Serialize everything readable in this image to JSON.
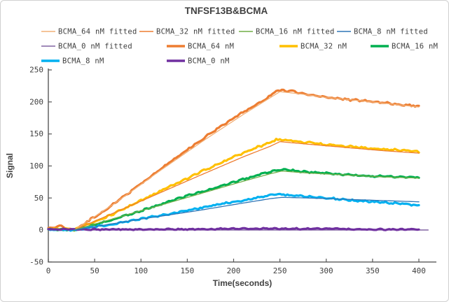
{
  "chart_data": {
    "type": "line",
    "title": "TNFSF13B&BCMA",
    "xlabel": "Time(seconds)",
    "ylabel": "Signal",
    "xlim": [
      0,
      415
    ],
    "ylim": [
      -50,
      250
    ],
    "xticks": [
      0,
      50,
      100,
      150,
      200,
      250,
      300,
      350,
      400
    ],
    "yticks": [
      -50,
      0,
      50,
      100,
      150,
      200,
      250
    ],
    "grid": false,
    "legend_position": "top",
    "axis_color": "#595959",
    "text_color": "#3f3f3f",
    "series": [
      {
        "name": "BCMA_64 nM fitted",
        "color": "#F2B077",
        "role": "fitted",
        "width": 1.3,
        "noise": 0,
        "points": [
          [
            28,
            0
          ],
          [
            70,
            40
          ],
          [
            120,
            92
          ],
          [
            170,
            142
          ],
          [
            210,
            180
          ],
          [
            240,
            207
          ],
          [
            250,
            216
          ],
          [
            270,
            213
          ],
          [
            300,
            207
          ],
          [
            350,
            200
          ],
          [
            400,
            192
          ]
        ]
      },
      {
        "name": "BCMA_32 nM fitted",
        "color": "#ED7D31",
        "role": "fitted",
        "width": 1.3,
        "noise": 0,
        "points": [
          [
            28,
            0
          ],
          [
            100,
            45
          ],
          [
            160,
            83
          ],
          [
            210,
            114
          ],
          [
            240,
            131
          ],
          [
            250,
            138
          ],
          [
            280,
            134
          ],
          [
            320,
            129
          ],
          [
            360,
            124
          ],
          [
            400,
            120
          ]
        ]
      },
      {
        "name": "BCMA_16 nM fitted",
        "color": "#70AD47",
        "role": "fitted",
        "width": 1.3,
        "noise": 0,
        "points": [
          [
            28,
            0
          ],
          [
            100,
            30
          ],
          [
            160,
            55
          ],
          [
            210,
            76
          ],
          [
            240,
            88
          ],
          [
            252,
            92
          ],
          [
            280,
            89
          ],
          [
            320,
            86
          ],
          [
            360,
            83
          ],
          [
            400,
            81
          ]
        ]
      },
      {
        "name": "BCMA_8 nM fitted",
        "color": "#2E75B6",
        "role": "fitted",
        "width": 1.3,
        "noise": 0,
        "points": [
          [
            28,
            0
          ],
          [
            100,
            17
          ],
          [
            160,
            30
          ],
          [
            210,
            42
          ],
          [
            240,
            49
          ],
          [
            252,
            51
          ],
          [
            280,
            50
          ],
          [
            320,
            48
          ],
          [
            360,
            46
          ],
          [
            400,
            44
          ]
        ]
      },
      {
        "name": "BCMA_0 nM fitted",
        "color": "#8064A2",
        "role": "fitted",
        "width": 1.6,
        "noise": 0,
        "points": [
          [
            0,
            0
          ],
          [
            410,
            0
          ]
        ]
      },
      {
        "name": "BCMA_64 nM",
        "color": "#ED7D31",
        "role": "data",
        "width": 3.2,
        "noise": 1.5,
        "points": [
          [
            0,
            2
          ],
          [
            6,
            4
          ],
          [
            11,
            6
          ],
          [
            16,
            5
          ],
          [
            22,
            1
          ],
          [
            28,
            0
          ],
          [
            60,
            30
          ],
          [
            100,
            72
          ],
          [
            140,
            115
          ],
          [
            180,
            156
          ],
          [
            210,
            184
          ],
          [
            232,
            202
          ],
          [
            246,
            217
          ],
          [
            252,
            218
          ],
          [
            265,
            216
          ],
          [
            280,
            212
          ],
          [
            300,
            207
          ],
          [
            320,
            204
          ],
          [
            340,
            202
          ],
          [
            360,
            199
          ],
          [
            380,
            196
          ],
          [
            400,
            193
          ]
        ]
      },
      {
        "name": "BCMA_32 nM",
        "color": "#FFC000",
        "role": "data",
        "width": 3.2,
        "noise": 1.5,
        "points": [
          [
            0,
            1
          ],
          [
            8,
            2
          ],
          [
            14,
            3
          ],
          [
            20,
            1
          ],
          [
            28,
            0
          ],
          [
            60,
            18
          ],
          [
            100,
            46
          ],
          [
            140,
            74
          ],
          [
            180,
            101
          ],
          [
            210,
            120
          ],
          [
            232,
            133
          ],
          [
            246,
            141
          ],
          [
            255,
            141
          ],
          [
            270,
            138
          ],
          [
            290,
            135
          ],
          [
            310,
            132
          ],
          [
            330,
            130
          ],
          [
            350,
            127
          ],
          [
            375,
            125
          ],
          [
            400,
            122
          ]
        ]
      },
      {
        "name": "BCMA_16 nM",
        "color": "#00B050",
        "role": "data",
        "width": 3.2,
        "noise": 1.4,
        "points": [
          [
            0,
            1
          ],
          [
            10,
            1
          ],
          [
            20,
            0
          ],
          [
            28,
            0
          ],
          [
            60,
            12
          ],
          [
            100,
            30
          ],
          [
            140,
            49
          ],
          [
            180,
            66
          ],
          [
            210,
            79
          ],
          [
            232,
            88
          ],
          [
            248,
            94
          ],
          [
            258,
            94
          ],
          [
            275,
            91
          ],
          [
            295,
            89
          ],
          [
            315,
            87
          ],
          [
            335,
            85
          ],
          [
            355,
            84
          ],
          [
            375,
            83
          ],
          [
            400,
            82
          ]
        ]
      },
      {
        "name": "BCMA_8 nM",
        "color": "#00B0F0",
        "role": "data",
        "width": 3.2,
        "noise": 1.4,
        "points": [
          [
            0,
            1
          ],
          [
            10,
            0
          ],
          [
            20,
            0
          ],
          [
            28,
            0
          ],
          [
            60,
            7
          ],
          [
            100,
            17
          ],
          [
            140,
            28
          ],
          [
            180,
            39
          ],
          [
            210,
            46
          ],
          [
            232,
            52
          ],
          [
            246,
            56
          ],
          [
            256,
            55
          ],
          [
            270,
            53
          ],
          [
            290,
            51
          ],
          [
            310,
            49
          ],
          [
            330,
            46
          ],
          [
            350,
            44
          ],
          [
            370,
            42
          ],
          [
            385,
            41
          ],
          [
            400,
            38
          ]
        ]
      },
      {
        "name": "BCMA_0 nM",
        "color": "#7030A0",
        "role": "data",
        "width": 3.2,
        "noise": 1.1,
        "points": [
          [
            0,
            1
          ],
          [
            50,
            1
          ],
          [
            100,
            1
          ],
          [
            150,
            1
          ],
          [
            200,
            2
          ],
          [
            250,
            2
          ],
          [
            300,
            2
          ],
          [
            350,
            1
          ],
          [
            400,
            1
          ]
        ]
      }
    ]
  }
}
